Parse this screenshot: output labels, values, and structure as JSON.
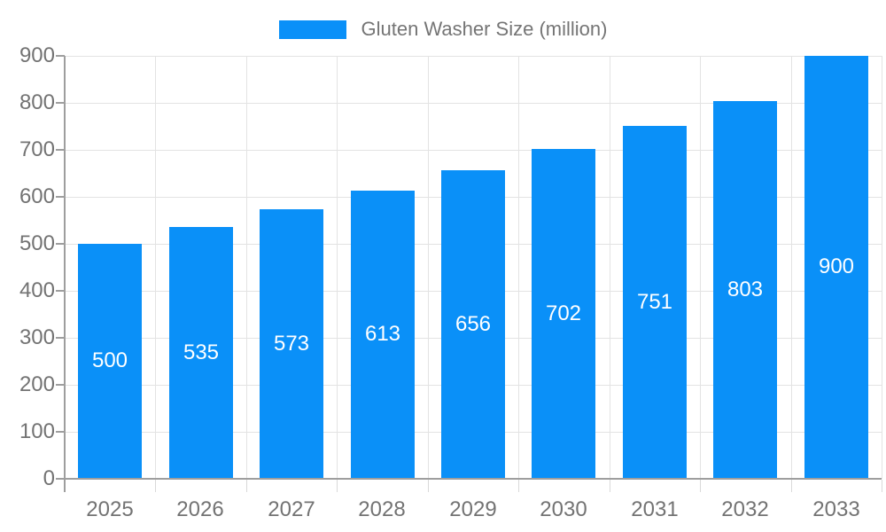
{
  "legend": {
    "label": "Gluten Washer Size (million)"
  },
  "chart_data": {
    "type": "bar",
    "title": "",
    "xlabel": "",
    "ylabel": "",
    "categories": [
      "2025",
      "2026",
      "2027",
      "2028",
      "2029",
      "2030",
      "2031",
      "2032",
      "2033"
    ],
    "series": [
      {
        "name": "Gluten Washer Size (million)",
        "values": [
          500,
          535,
          573,
          613,
          656,
          702,
          751,
          803,
          900
        ]
      }
    ],
    "ylim": [
      0,
      900
    ],
    "ytick_step": 100,
    "ytick_labels": [
      "0",
      "100",
      "200",
      "300",
      "400",
      "500",
      "600",
      "700",
      "800",
      "900"
    ],
    "grid": true,
    "legend_position": "top-center",
    "value_label_position": "inside-center"
  },
  "colors": {
    "bar": "#0a90f8",
    "value_label": "#ffffff",
    "grid_line": "#e3e3e3",
    "axis_line": "#9e9e9e",
    "tick_text": "#737373",
    "legend_text": "#757575",
    "background": "#ffffff"
  }
}
